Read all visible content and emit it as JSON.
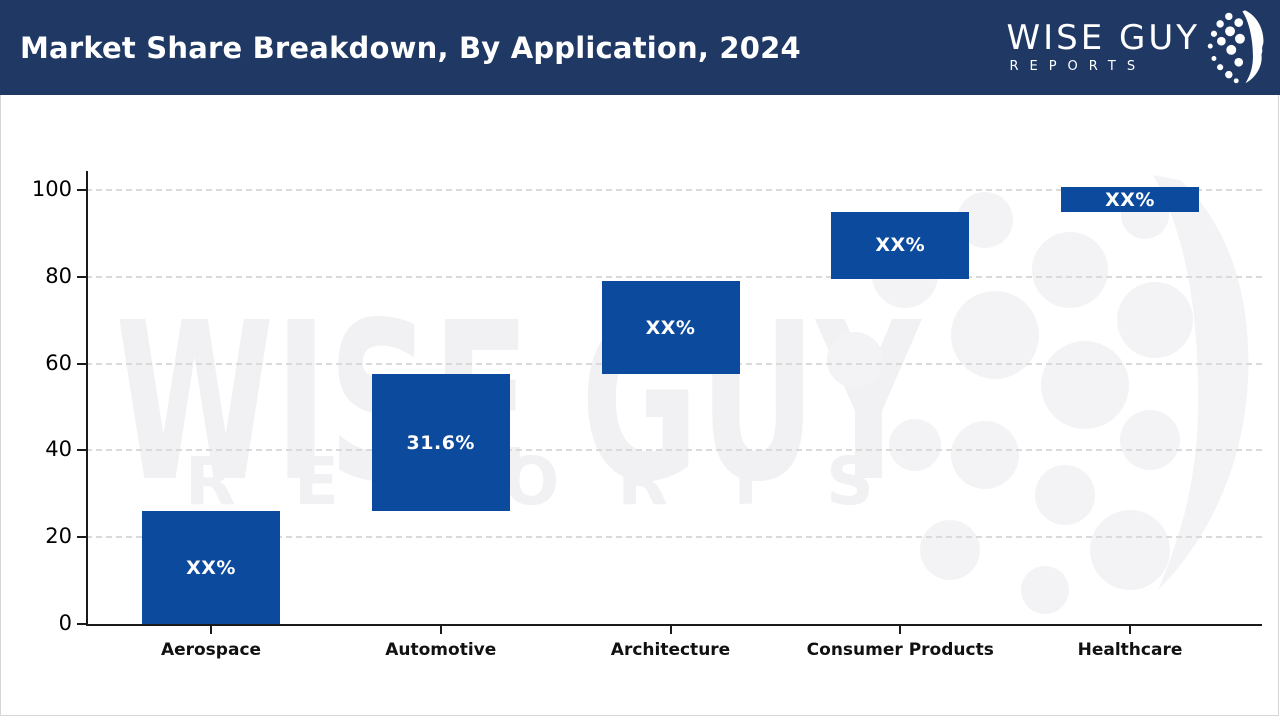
{
  "header": {
    "title": "Market Share Breakdown, By Application, 2024",
    "logo": {
      "wordmark": "WISE GUY",
      "subtext": "REPORTS"
    }
  },
  "watermark": {
    "line1": "WISE GUY",
    "line2": "REPORTS"
  },
  "chart_data": {
    "type": "bar",
    "variant": "floating-waterfall",
    "title": "Market Share Breakdown, By Application, 2024",
    "categories": [
      "Aerospace",
      "Automotive",
      "Architecture",
      "Consumer Products",
      "Healthcare"
    ],
    "segments": [
      {
        "category": "Aerospace",
        "start": 0,
        "end": 26,
        "label": "XX%"
      },
      {
        "category": "Automotive",
        "start": 26,
        "end": 57.6,
        "label": "31.6%"
      },
      {
        "category": "Architecture",
        "start": 57.6,
        "end": 79,
        "label": "XX%"
      },
      {
        "category": "Consumer Products",
        "start": 79.5,
        "end": 95,
        "label": "XX%"
      },
      {
        "category": "Healthcare",
        "start": 95,
        "end": 100.6,
        "label": "XX%"
      }
    ],
    "yticks": [
      0,
      20,
      40,
      60,
      80,
      100
    ],
    "ylim": [
      0,
      105
    ],
    "xlabel": "",
    "ylabel": "",
    "legend": "none",
    "grid": "horizontal-dashed",
    "bar_color": "#0c4a9e",
    "bar_label_color": "#ffffff"
  },
  "colors": {
    "header_bg": "#1f3864",
    "header_text": "#ffffff",
    "bar": "#0c4a9e",
    "grid": "#dadada",
    "axis": "#1a1a1a",
    "tick_text": "#000000",
    "watermark": "#f1f1f4"
  }
}
